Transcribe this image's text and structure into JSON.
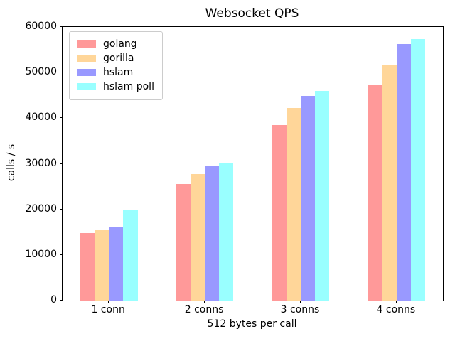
{
  "title": "Websocket QPS",
  "chart_data": {
    "type": "bar",
    "title": "Websocket QPS",
    "xlabel": "512 bytes per call",
    "ylabel": "calls / s",
    "categories": [
      "1 conn",
      "2 conns",
      "3 conns",
      "4 conns"
    ],
    "series": [
      {
        "name": "golang",
        "color": "#ff9999",
        "values": [
          14800,
          25500,
          38500,
          47400
        ]
      },
      {
        "name": "gorilla",
        "color": "#ffd699",
        "values": [
          15500,
          27700,
          42200,
          51800
        ]
      },
      {
        "name": "hslam",
        "color": "#9999ff",
        "values": [
          16100,
          29600,
          44900,
          56200
        ]
      },
      {
        "name": "hslam poll",
        "color": "#99ffff",
        "values": [
          19900,
          30200,
          46000,
          57300
        ]
      }
    ],
    "ylim": [
      0,
      60000
    ],
    "yticks": [
      0,
      10000,
      20000,
      30000,
      40000,
      50000,
      60000
    ],
    "legend_position": "upper left",
    "grid": false,
    "background": "#ffffff",
    "spine_color": "#000000"
  }
}
